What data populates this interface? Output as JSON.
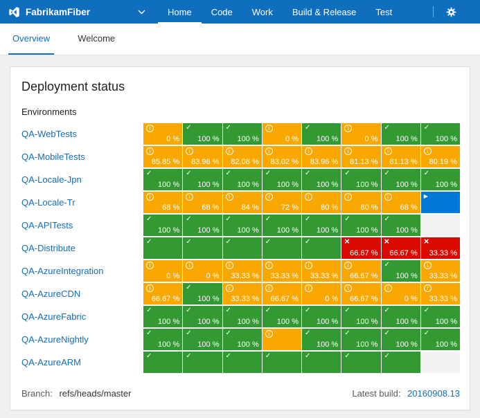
{
  "top_nav": {
    "brand": "FabrikamFiber",
    "items": [
      {
        "label": "Home",
        "active": true
      },
      {
        "label": "Code",
        "active": false
      },
      {
        "label": "Work",
        "active": false
      },
      {
        "label": "Build & Release",
        "active": false
      },
      {
        "label": "Test",
        "active": false
      }
    ]
  },
  "hub_tabs": [
    {
      "label": "Overview",
      "active": true
    },
    {
      "label": "Welcome",
      "active": false
    }
  ],
  "statuses": {
    "success": {
      "icon": "checkmark-icon",
      "glyph": "✓",
      "color": "#339933"
    },
    "warning": {
      "icon": "info-icon",
      "glyph": "i",
      "color": "#f8a800"
    },
    "failure": {
      "icon": "x-icon",
      "glyph": "×",
      "color": "#da0a00"
    },
    "inprogress": {
      "icon": "play-icon",
      "glyph": "▶",
      "color": "#0078d7"
    },
    "empty": {
      "icon": "",
      "glyph": "",
      "color": "#f2f2f2"
    }
  },
  "colors": {
    "header": "#106ebe",
    "link": "#106ebe"
  },
  "widget": {
    "title": "Deployment status",
    "environments_label": "Environments",
    "rows": [
      {
        "name": "QA-WebTests",
        "cells": [
          {
            "status": "warning",
            "value": "0 %"
          },
          {
            "status": "success",
            "value": "100 %"
          },
          {
            "status": "success",
            "value": "100 %"
          },
          {
            "status": "warning",
            "value": "0 %"
          },
          {
            "status": "success",
            "value": "100 %"
          },
          {
            "status": "warning",
            "value": "0 %"
          },
          {
            "status": "success",
            "value": "100 %"
          },
          {
            "status": "success",
            "value": "100 %"
          }
        ]
      },
      {
        "name": "QA-MobileTests",
        "cells": [
          {
            "status": "warning",
            "value": "85.85 %"
          },
          {
            "status": "warning",
            "value": "83.96 %"
          },
          {
            "status": "warning",
            "value": "82.08 %"
          },
          {
            "status": "warning",
            "value": "83.02 %"
          },
          {
            "status": "warning",
            "value": "83.96 %"
          },
          {
            "status": "warning",
            "value": "81.13 %"
          },
          {
            "status": "warning",
            "value": "81.13 %"
          },
          {
            "status": "warning",
            "value": "80.19 %"
          }
        ]
      },
      {
        "name": "QA-Locale-Jpn",
        "cells": [
          {
            "status": "success",
            "value": "100 %"
          },
          {
            "status": "success",
            "value": "100 %"
          },
          {
            "status": "success",
            "value": "100 %"
          },
          {
            "status": "success",
            "value": "100 %"
          },
          {
            "status": "success",
            "value": "100 %"
          },
          {
            "status": "success",
            "value": "100 %"
          },
          {
            "status": "success",
            "value": "100 %"
          },
          {
            "status": "success",
            "value": "100 %"
          }
        ]
      },
      {
        "name": "QA-Locale-Tr",
        "cells": [
          {
            "status": "warning",
            "value": "68 %"
          },
          {
            "status": "warning",
            "value": "68 %"
          },
          {
            "status": "warning",
            "value": "84 %"
          },
          {
            "status": "warning",
            "value": "72 %"
          },
          {
            "status": "warning",
            "value": "80 %"
          },
          {
            "status": "warning",
            "value": "80 %"
          },
          {
            "status": "warning",
            "value": "68 %"
          },
          {
            "status": "inprogress",
            "value": ""
          }
        ]
      },
      {
        "name": "QA-APITests",
        "cells": [
          {
            "status": "success",
            "value": "100 %"
          },
          {
            "status": "success",
            "value": "100 %"
          },
          {
            "status": "success",
            "value": "100 %"
          },
          {
            "status": "success",
            "value": "100 %"
          },
          {
            "status": "success",
            "value": "100 %"
          },
          {
            "status": "success",
            "value": "100 %"
          },
          {
            "status": "success",
            "value": "100 %"
          },
          {
            "status": "empty",
            "value": ""
          }
        ]
      },
      {
        "name": "QA-Distribute",
        "cells": [
          {
            "status": "success",
            "value": ""
          },
          {
            "status": "success",
            "value": ""
          },
          {
            "status": "success",
            "value": ""
          },
          {
            "status": "success",
            "value": ""
          },
          {
            "status": "success",
            "value": ""
          },
          {
            "status": "failure",
            "value": "66.67 %"
          },
          {
            "status": "failure",
            "value": "66.67 %"
          },
          {
            "status": "failure",
            "value": "33.33 %"
          }
        ]
      },
      {
        "name": "QA-AzureIntegration",
        "cells": [
          {
            "status": "warning",
            "value": "0 %"
          },
          {
            "status": "warning",
            "value": "0 %"
          },
          {
            "status": "warning",
            "value": "33.33 %"
          },
          {
            "status": "warning",
            "value": "33.33 %"
          },
          {
            "status": "warning",
            "value": "33.33 %"
          },
          {
            "status": "warning",
            "value": "66.67 %"
          },
          {
            "status": "success",
            "value": "100 %"
          },
          {
            "status": "warning",
            "value": "33.33 %"
          }
        ]
      },
      {
        "name": "QA-AzureCDN",
        "cells": [
          {
            "status": "warning",
            "value": "66.67 %"
          },
          {
            "status": "success",
            "value": "100 %"
          },
          {
            "status": "warning",
            "value": "33.33 %"
          },
          {
            "status": "warning",
            "value": "66.67 %"
          },
          {
            "status": "warning",
            "value": "0 %"
          },
          {
            "status": "warning",
            "value": "66.67 %"
          },
          {
            "status": "warning",
            "value": "0 %"
          },
          {
            "status": "warning",
            "value": "33.33 %"
          }
        ]
      },
      {
        "name": "QA-AzureFabric",
        "cells": [
          {
            "status": "success",
            "value": "100 %"
          },
          {
            "status": "success",
            "value": "100 %"
          },
          {
            "status": "success",
            "value": "100 %"
          },
          {
            "status": "success",
            "value": "100 %"
          },
          {
            "status": "success",
            "value": "100 %"
          },
          {
            "status": "success",
            "value": "100 %"
          },
          {
            "status": "success",
            "value": "100 %"
          },
          {
            "status": "success",
            "value": "100 %"
          }
        ]
      },
      {
        "name": "QA-AzureNightly",
        "cells": [
          {
            "status": "success",
            "value": "100 %"
          },
          {
            "status": "success",
            "value": "100 %"
          },
          {
            "status": "success",
            "value": "100 %"
          },
          {
            "status": "warning",
            "value": ""
          },
          {
            "status": "success",
            "value": "100 %"
          },
          {
            "status": "success",
            "value": "100 %"
          },
          {
            "status": "success",
            "value": "100 %"
          },
          {
            "status": "success",
            "value": "100 %"
          }
        ]
      },
      {
        "name": "QA-AzureARM",
        "cells": [
          {
            "status": "success",
            "value": ""
          },
          {
            "status": "success",
            "value": ""
          },
          {
            "status": "success",
            "value": ""
          },
          {
            "status": "success",
            "value": ""
          },
          {
            "status": "success",
            "value": ""
          },
          {
            "status": "success",
            "value": ""
          },
          {
            "status": "success",
            "value": ""
          },
          {
            "status": "empty",
            "value": ""
          }
        ]
      }
    ],
    "footer": {
      "branch_label": "Branch:",
      "branch_value": "refs/heads/master",
      "build_label": "Latest build:",
      "build_value": "20160908.13"
    }
  }
}
